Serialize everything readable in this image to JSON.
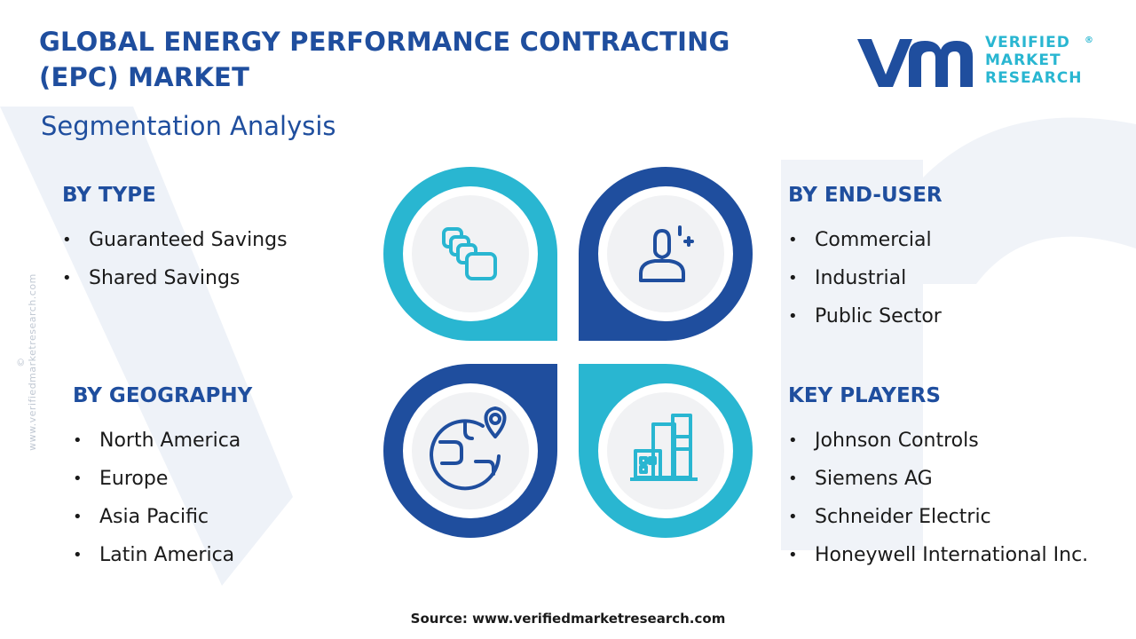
{
  "header": {
    "title_line1": "GLOBAL ENERGY PERFORMANCE CONTRACTING",
    "title_line2": "(EPC) MARKET",
    "subtitle": "Segmentation Analysis"
  },
  "logo": {
    "line1": "VERIFIED",
    "line2": "MARKET",
    "line3": "RESEARCH",
    "registered": "®",
    "icon": "vmr-logo-icon"
  },
  "watermark_side": "© www.verifiedmarketresearch.com",
  "colors": {
    "dark_blue": "#1f4e9e",
    "cyan": "#29b6d1",
    "icon_gray_bg": "#f1f2f4",
    "watermark": "#eef1f6"
  },
  "segments": {
    "type": {
      "heading": "BY TYPE",
      "items": [
        "Guaranteed Savings",
        "Shared Savings"
      ],
      "icon": "stacked-cards-icon"
    },
    "end_user": {
      "heading": "BY END-USER",
      "items": [
        "Commercial",
        "Industrial",
        "Public Sector"
      ],
      "icon": "user-icon"
    },
    "geography": {
      "heading": "BY GEOGRAPHY",
      "items": [
        "North America",
        "Europe",
        "Asia Pacific",
        "Latin America"
      ],
      "icon": "globe-pin-icon"
    },
    "players": {
      "heading": "KEY PLAYERS",
      "items": [
        "Johnson Controls",
        "Siemens AG",
        "Schneider Electric",
        "Honeywell International Inc."
      ],
      "icon": "buildings-icon"
    }
  },
  "bullet": "•",
  "source": "Source: www.verifiedmarketresearch.com"
}
